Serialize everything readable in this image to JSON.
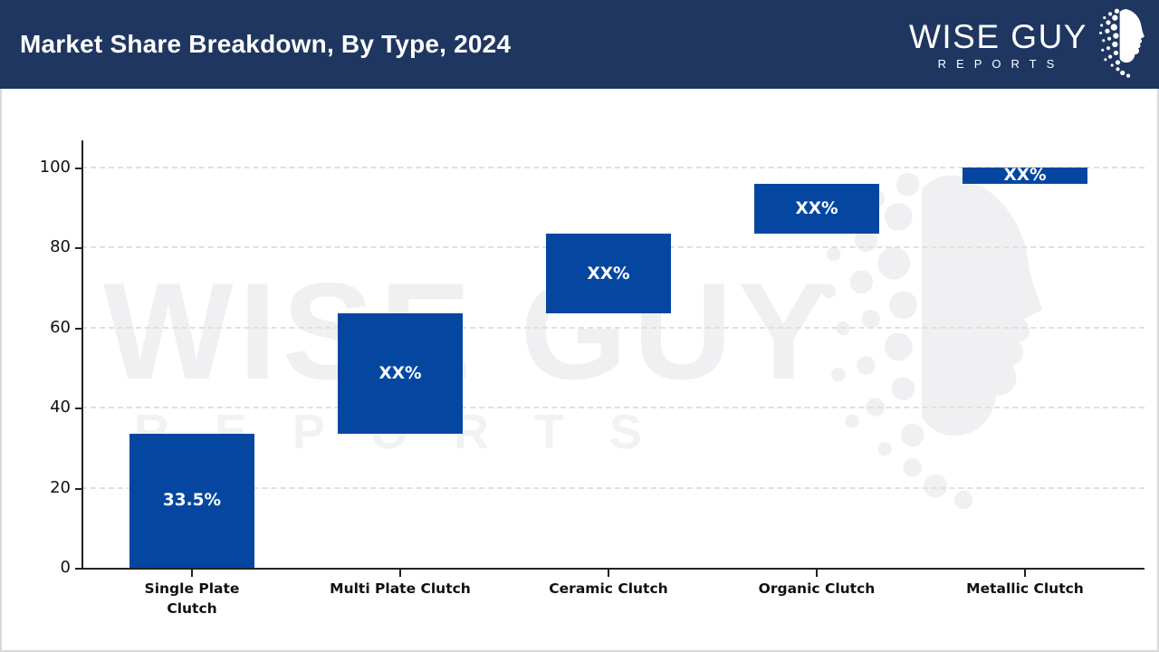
{
  "header": {
    "title": "Market Share Breakdown, By Type, 2024",
    "logo": {
      "line1": "WISE GUY",
      "line2": "REPORTS"
    }
  },
  "watermark": {
    "line1": "WISE GUY",
    "line2": "REPORTS"
  },
  "colors": {
    "header_bg": "#1F3660",
    "bar": "#0547A0",
    "bar_label_text": "#FFFFFF",
    "gridline": "#E0E0E0",
    "axis": "#222222",
    "watermark": "#F0F0F2"
  },
  "chart_data": {
    "type": "bar",
    "subtype": "waterfall",
    "title": "Market Share Breakdown, By Type, 2024",
    "xlabel": "",
    "ylabel": "",
    "categories": [
      "Single Plate\nClutch",
      "Multi Plate Clutch",
      "Ceramic Clutch",
      "Organic Clutch",
      "Metallic Clutch"
    ],
    "values": [
      33.5,
      30,
      20,
      12.5,
      4
    ],
    "segments": [
      {
        "category": "Single Plate Clutch",
        "start": 0,
        "end": 33.5,
        "label": "33.5%"
      },
      {
        "category": "Multi Plate Clutch",
        "start": 33.5,
        "end": 63.5,
        "label": "XX%"
      },
      {
        "category": "Ceramic Clutch",
        "start": 63.5,
        "end": 83.5,
        "label": "XX%"
      },
      {
        "category": "Organic Clutch",
        "start": 83.5,
        "end": 96,
        "label": "XX%"
      },
      {
        "category": "Metallic Clutch",
        "start": 96,
        "end": 100,
        "label": "XX%"
      }
    ],
    "ylim": [
      0,
      105
    ],
    "yticks": [
      0,
      20,
      40,
      60,
      80,
      100
    ],
    "grid": "horizontal-dashed",
    "legend": "none"
  }
}
